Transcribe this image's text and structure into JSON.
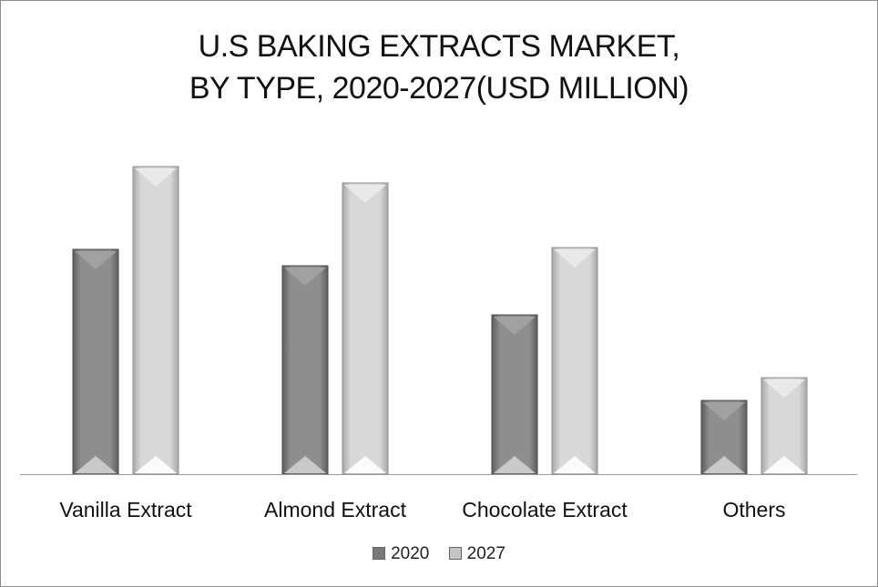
{
  "chart_data": {
    "type": "bar",
    "title_line1": "U.S BAKING EXTRACTS MARKET,",
    "title_line2": "BY TYPE, 2020-2027(USD MILLION)",
    "xlabel": "",
    "ylabel": "",
    "categories": [
      "Vanilla Extract",
      "Almond Extract",
      "Chocolate Extract",
      "Others"
    ],
    "series": [
      {
        "name": "2020",
        "values": [
          247,
          229,
          175,
          81
        ],
        "color": "#7a7a7a"
      },
      {
        "name": "2027",
        "values": [
          338,
          320,
          249,
          106
        ],
        "color": "#c4c4c4"
      }
    ],
    "ylim": [
      0,
      360
    ],
    "grid": false,
    "legend_position": "bottom"
  }
}
